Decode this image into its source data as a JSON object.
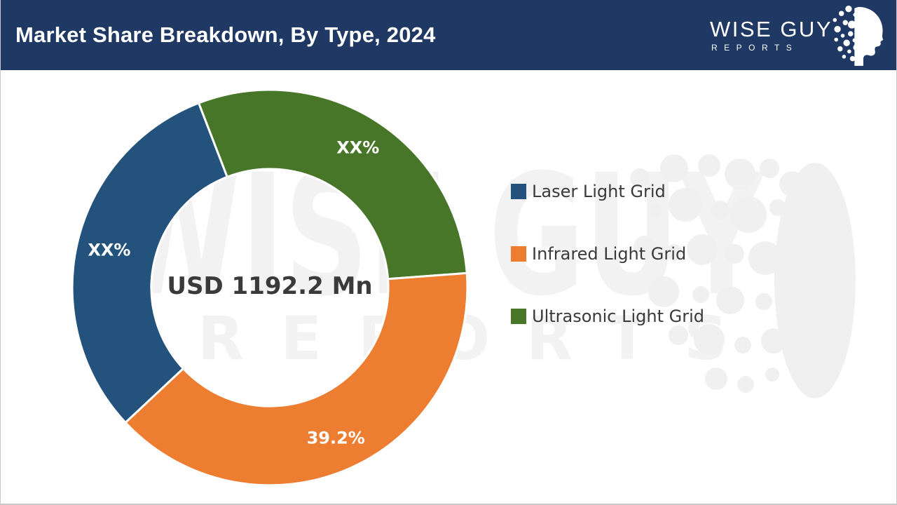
{
  "header": {
    "title": "Market Share Breakdown, By Type, 2024",
    "logo": {
      "wordmark": "WISE GUY",
      "subtext": "REPORTS"
    }
  },
  "watermark": {
    "wordmark": "WISE GUY",
    "subtext": "REPORTS"
  },
  "chart_data": {
    "type": "pie",
    "donut": true,
    "title": "Market Share Breakdown, By Type, 2024",
    "center_label": "USD 1192.2 Mn",
    "start_angle_deg": -21.1,
    "inner_radius_ratio": 0.6,
    "legend_position": "right",
    "slices": [
      {
        "name": "Ultrasonic Light Grid",
        "value_pct": 29.7,
        "label": "XX%",
        "color": "#487628"
      },
      {
        "name": "Infrared Light Grid",
        "value_pct": 39.2,
        "label": "39.2%",
        "color": "#ed7d31"
      },
      {
        "name": "Laser Light Grid",
        "value_pct": 31.1,
        "label": "XX%",
        "color": "#23527c"
      }
    ],
    "legend": [
      {
        "label": "Laser Light Grid",
        "color": "#23527c"
      },
      {
        "label": "Infrared Light Grid",
        "color": "#ed7d31"
      },
      {
        "label": "Ultrasonic Light Grid",
        "color": "#487628"
      }
    ]
  },
  "colors": {
    "header_bg": "#1f3864",
    "body_bg": "#ffffff",
    "text_dark": "#3a3a3a",
    "slice_label": "#ffffff",
    "border": "#c9c9c9",
    "watermark": "#f2f2f2"
  }
}
